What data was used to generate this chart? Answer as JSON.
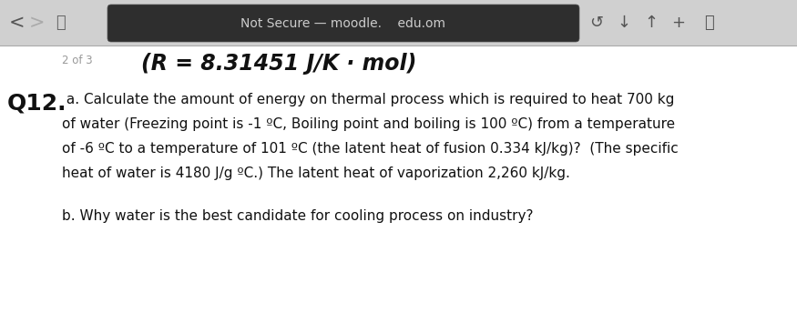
{
  "browser_bg": "#d0d0d0",
  "content_bg": "#ffffff",
  "nav_bar_bg": "#2e2e2e",
  "nav_text": "Not Secure — moodle.    edu.om",
  "page_counter": "2 of 3",
  "formula": "(R = 8.31451 J/K · mol)",
  "q12_label": "Q12.",
  "line1": " a. Calculate the amount of energy on thermal process which is required to heat 700 kg",
  "line2": "of water (Freezing point is -1 ºC, Boiling point and boiling is 100 ºC) from a temperature",
  "line3": "of -6 ºC to a temperature of 101 ºC (the latent heat of fusion 0.334 kJ/kg)?  (The specific",
  "line4": "heat of water is 4180 J/g ºC.) The latent heat of vaporization 2,260 kJ/kg.",
  "line5": "b. Why water is the best candidate for cooling process on industry?",
  "figwidth": 8.75,
  "figheight": 3.66,
  "dpi": 100
}
